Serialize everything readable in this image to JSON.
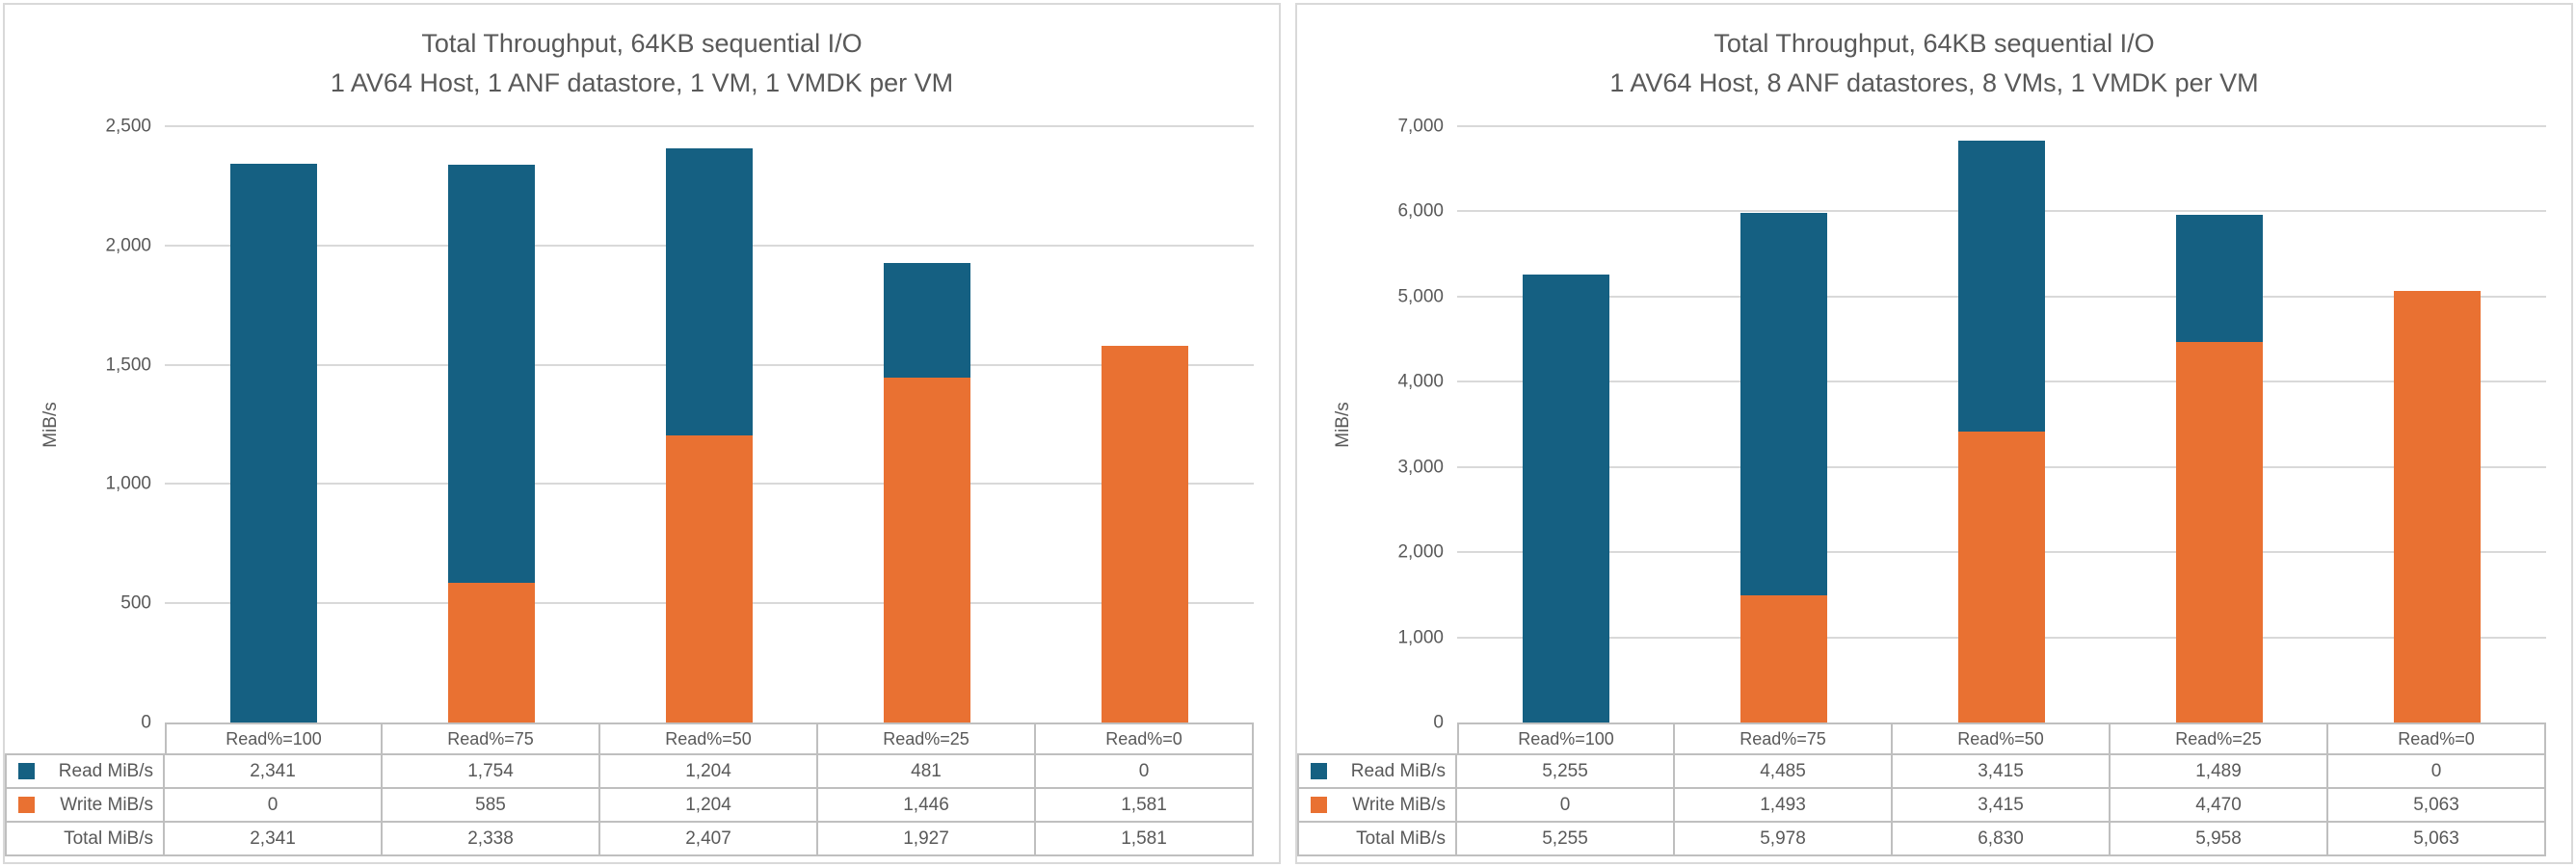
{
  "page": {
    "background": "#FFFFFF"
  },
  "colors": {
    "read": "#156082",
    "write": "#E97132",
    "grid": "#D9D9D9",
    "table_border": "#BFBFBF",
    "panel_border": "#D9D9D9",
    "text": "#595959"
  },
  "chart_data": [
    {
      "type": "bar",
      "stacked": true,
      "title": "Total Throughput, 64KB sequential I/O",
      "subtitle": "1 AV64 Host, 1 ANF datastore, 1 VM, 1 VMDK per VM",
      "ylabel": "MiB/s",
      "ylim": [
        0,
        2500
      ],
      "grid": true,
      "legend_position": "data-table-left",
      "yticks": [
        {
          "v": 0,
          "label": "0"
        },
        {
          "v": 500,
          "label": "500"
        },
        {
          "v": 1000,
          "label": "1,000"
        },
        {
          "v": 1500,
          "label": "1,500"
        },
        {
          "v": 2000,
          "label": "2,000"
        },
        {
          "v": 2500,
          "label": "2,500"
        }
      ],
      "categories": [
        "Read%=100",
        "Read%=75",
        "Read%=50",
        "Read%=25",
        "Read%=0"
      ],
      "series": [
        {
          "name": "Read MiB/s",
          "color": "#156082",
          "values": [
            2341,
            1754,
            1204,
            481,
            0
          ],
          "labels": [
            "2,341",
            "1,754",
            "1,204",
            "481",
            "0"
          ]
        },
        {
          "name": "Write MiB/s",
          "color": "#E97132",
          "values": [
            0,
            585,
            1204,
            1446,
            1581
          ],
          "labels": [
            "0",
            "585",
            "1,204",
            "1,446",
            "1,581"
          ]
        }
      ],
      "totals": {
        "name": "Total MiB/s",
        "values": [
          2341,
          2338,
          2407,
          1927,
          1581
        ],
        "labels": [
          "2,341",
          "2,338",
          "2,407",
          "1,927",
          "1,581"
        ]
      }
    },
    {
      "type": "bar",
      "stacked": true,
      "title": "Total Throughput, 64KB sequential I/O",
      "subtitle": "1 AV64 Host, 8 ANF datastores, 8 VMs, 1 VMDK per VM",
      "ylabel": "MiB/s",
      "ylim": [
        0,
        7000
      ],
      "grid": true,
      "legend_position": "data-table-left",
      "yticks": [
        {
          "v": 0,
          "label": "0"
        },
        {
          "v": 1000,
          "label": "1,000"
        },
        {
          "v": 2000,
          "label": "2,000"
        },
        {
          "v": 3000,
          "label": "3,000"
        },
        {
          "v": 4000,
          "label": "4,000"
        },
        {
          "v": 5000,
          "label": "5,000"
        },
        {
          "v": 6000,
          "label": "6,000"
        },
        {
          "v": 7000,
          "label": "7,000"
        }
      ],
      "categories": [
        "Read%=100",
        "Read%=75",
        "Read%=50",
        "Read%=25",
        "Read%=0"
      ],
      "series": [
        {
          "name": "Read MiB/s",
          "color": "#156082",
          "values": [
            5255,
            4485,
            3415,
            1489,
            0
          ],
          "labels": [
            "5,255",
            "4,485",
            "3,415",
            "1,489",
            "0"
          ]
        },
        {
          "name": "Write MiB/s",
          "color": "#E97132",
          "values": [
            0,
            1493,
            3415,
            4470,
            5063
          ],
          "labels": [
            "0",
            "1,493",
            "3,415",
            "4,470",
            "5,063"
          ]
        }
      ],
      "totals": {
        "name": "Total MiB/s",
        "values": [
          5255,
          5978,
          6830,
          5958,
          5063
        ],
        "labels": [
          "5,255",
          "5,978",
          "6,830",
          "5,958",
          "5,063"
        ]
      }
    }
  ]
}
